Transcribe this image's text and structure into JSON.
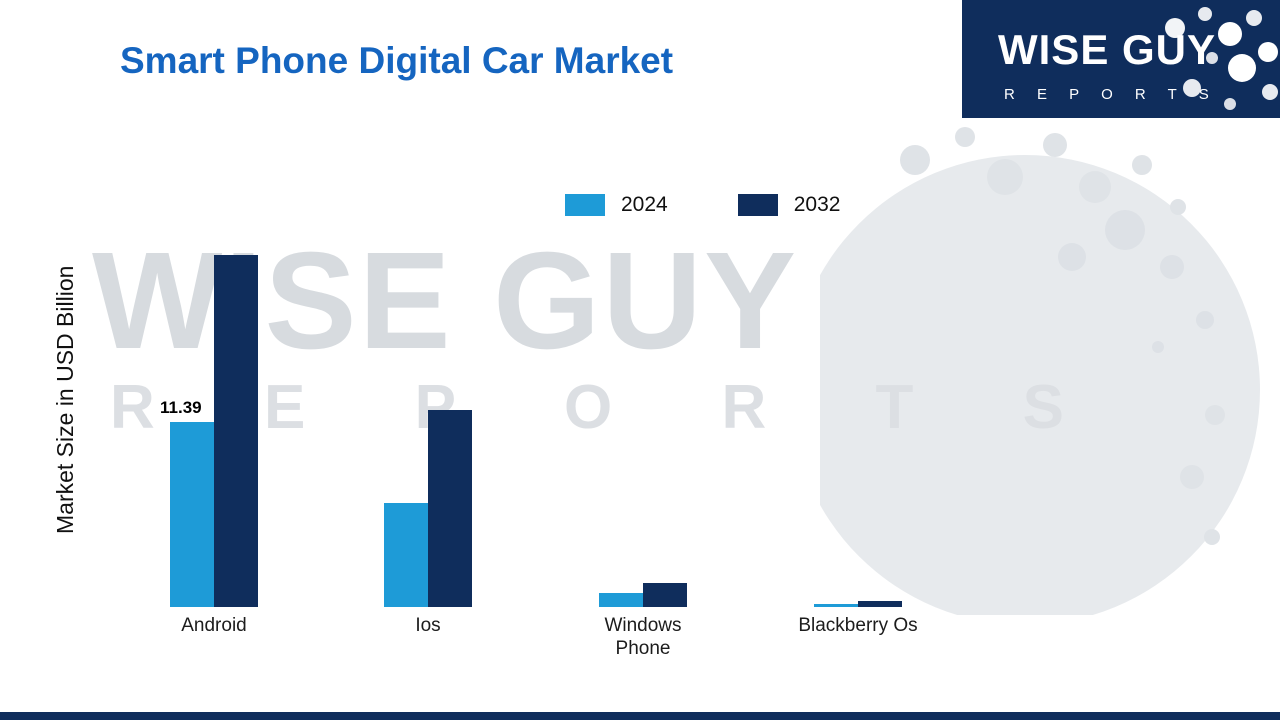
{
  "header": {
    "title": "Smart Phone Digital Car Market"
  },
  "logo": {
    "name": "WISE GUY",
    "subtitle": "R E P O R T S"
  },
  "watermark": {
    "line1": "WISE GUY",
    "line2": "R E P O R T S"
  },
  "colors": {
    "title_blue": "#1565c0",
    "navy": "#0f2d5c",
    "light_blue": "#1e9bd7",
    "watermark_gray": "#d7dbdf"
  },
  "chart_data": {
    "type": "bar",
    "title": "Smart Phone Digital Car Market",
    "xlabel": "",
    "ylabel": "Market Size in USD Billion",
    "categories": [
      "Android",
      "Ios",
      "Windows Phone",
      "Blackberry Os"
    ],
    "series": [
      {
        "name": "2024",
        "color": "#1e9bd7",
        "values": [
          11.39,
          6.4,
          0.86,
          0.18
        ]
      },
      {
        "name": "2032",
        "color": "#0f2d5c",
        "values": [
          21.67,
          12.13,
          1.48,
          0.37
        ]
      }
    ],
    "annotations": [
      {
        "series": "2024",
        "category": "Android",
        "text": "11.39"
      }
    ],
    "ylim": [
      0,
      24
    ],
    "grid": false,
    "legend_position": "top"
  }
}
